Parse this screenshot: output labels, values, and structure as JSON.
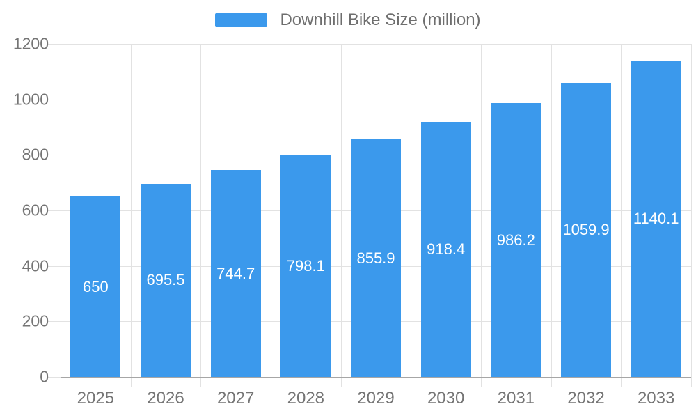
{
  "chart_data": {
    "type": "bar",
    "title": "",
    "legend": "Downhill Bike Size (million)",
    "categories": [
      "2025",
      "2026",
      "2027",
      "2028",
      "2029",
      "2030",
      "2031",
      "2032",
      "2033"
    ],
    "values": [
      650,
      695.5,
      744.7,
      798.1,
      855.9,
      918.4,
      986.2,
      1059.9,
      1140.1
    ],
    "value_labels": [
      "650",
      "695.5",
      "744.7",
      "798.1",
      "855.9",
      "918.4",
      "986.2",
      "1059.9",
      "1140.1"
    ],
    "xlabel": "",
    "ylabel": "",
    "ylim": [
      0,
      1200
    ],
    "ytick_step": 200,
    "ytick_labels": [
      "0",
      "200",
      "400",
      "600",
      "800",
      "1000",
      "1200"
    ],
    "grid": true,
    "legend_position": "top-center",
    "value_label_position": "inside-middle",
    "colors": {
      "bar": "#3B99EC",
      "value_label": "#FFFFFF",
      "axis_label": "#757575",
      "legend_text": "#6E6E6E",
      "gridline": "#E2E2E2",
      "axis_line": "#A6A6A6",
      "background": "#FFFFFF"
    }
  }
}
